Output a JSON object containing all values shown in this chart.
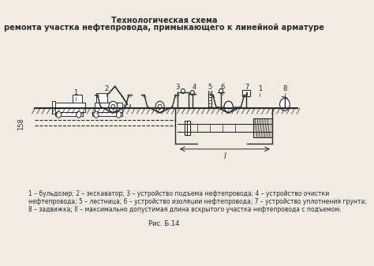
{
  "title_line1": "Технологическая схема",
  "title_line2": "ремонта участка нефтепровода, примыкающего к линейной арматуре",
  "caption_line1": "1 – бульдозер; 2 – экскаватор; 3 – устройство подъема нефтепровода; 4 – устройство очистки",
  "caption_line2": "нефтепровода; 5 – лестница; 6 – устройство изоляции нефтепровода; 7 – устройство уплотнения грунта;",
  "caption_line3": "8 – задвижка; ll – максимально допустимая длина вскрытого участка нефтепровода с подъемом.",
  "fig_caption": "Рис. Б.14",
  "page_num": "158",
  "bg_color": "#f0ece4",
  "line_color": "#2a2a2a",
  "title_fontsize": 7,
  "caption_fontsize": 5.5
}
